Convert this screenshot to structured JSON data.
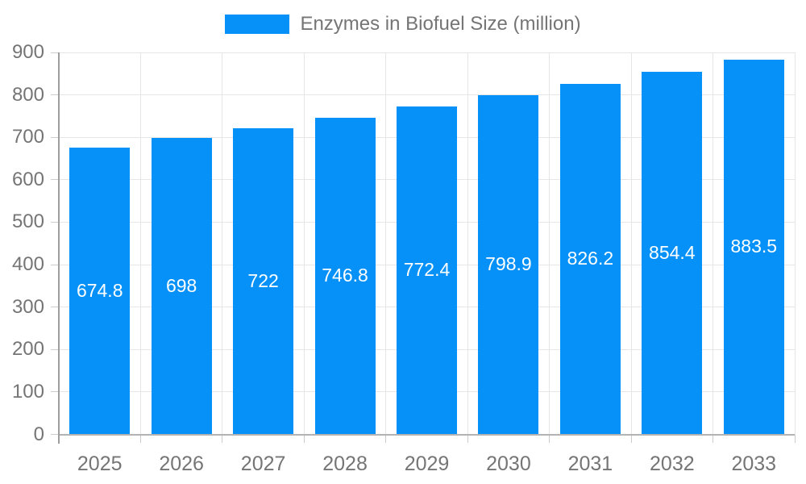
{
  "legend": {
    "label": "Enzymes in Biofuel Size (million)"
  },
  "chart_data": {
    "type": "bar",
    "title": "Enzymes in Biofuel Size (million)",
    "legend_label": "Enzymes in Biofuel Size (million)",
    "legend_position": "top-center",
    "grid": true,
    "categories": [
      "2025",
      "2026",
      "2027",
      "2028",
      "2029",
      "2030",
      "2031",
      "2032",
      "2033"
    ],
    "series": [
      {
        "name": "Enzymes in Biofuel Size (million)",
        "values": [
          674.8,
          698,
          722,
          746.8,
          772.4,
          798.9,
          826.2,
          854.4,
          883.5
        ]
      }
    ],
    "value_labels": [
      "674.8",
      "698",
      "722",
      "746.8",
      "772.4",
      "798.9",
      "826.2",
      "854.4",
      "883.5"
    ],
    "xlabel": "",
    "ylabel": "",
    "ylim": [
      0,
      900
    ],
    "y_ticks": [
      0,
      100,
      200,
      300,
      400,
      500,
      600,
      700,
      800,
      900
    ],
    "colors": {
      "bar": "#0591f8",
      "grid": "#e6e6e6",
      "axis_line": "#9e9e9e",
      "tick": "#cccccc",
      "baseline": "#b3b3b3",
      "text": "#757575",
      "value_text": "#ffffff",
      "background": "#ffffff"
    }
  }
}
